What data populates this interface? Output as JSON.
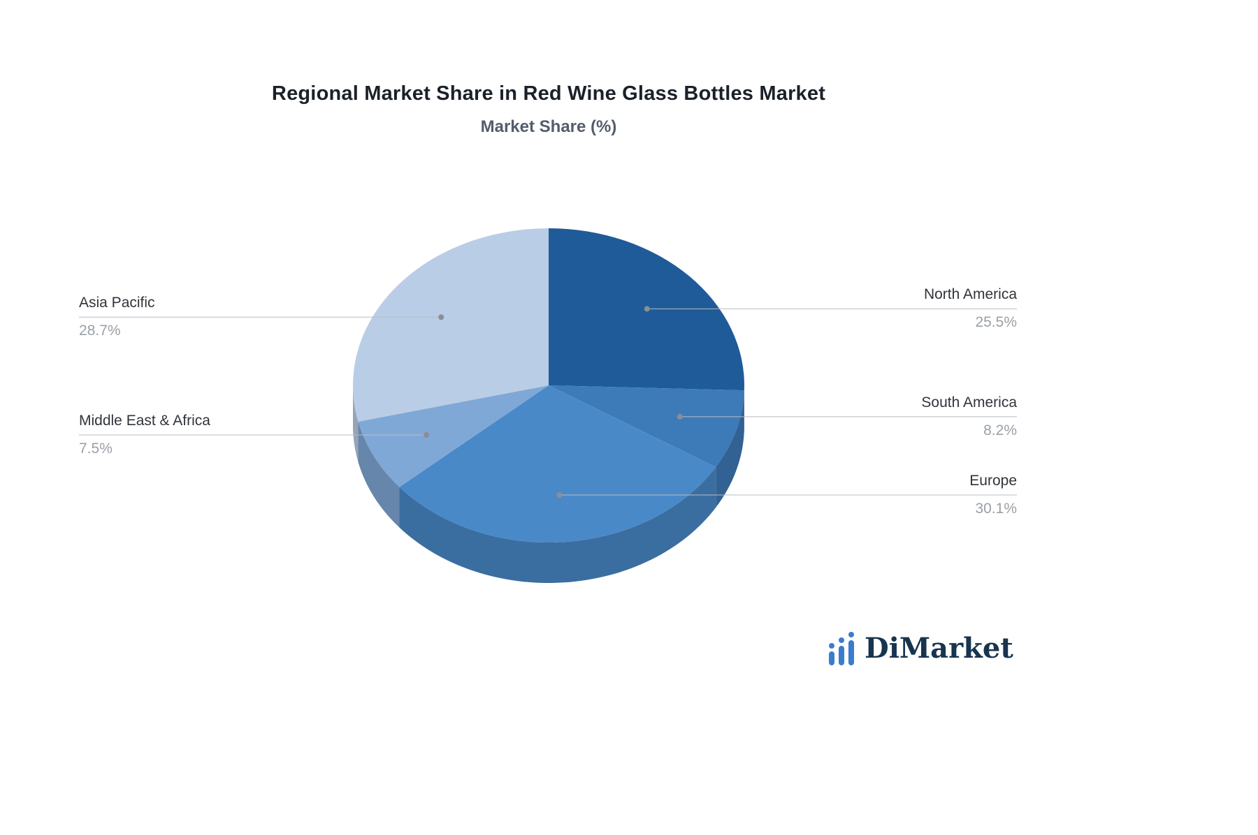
{
  "chart_data": {
    "type": "pie",
    "title": "Regional Market Share in Red Wine Glass Bottles Market",
    "subtitle": "Market Share (%)",
    "unit": "%",
    "start_angle_deg": -90,
    "direction": "clockwise",
    "labels_style": "leader-lines",
    "effect": "3d-depth",
    "categories": [
      "North America",
      "South America",
      "Europe",
      "Middle East & Africa",
      "Asia Pacific"
    ],
    "values": [
      25.5,
      8.2,
      30.1,
      7.5,
      28.7
    ],
    "slices": [
      {
        "label": "North America",
        "value": 25.5,
        "display": "25.5%",
        "color": "#1f5b99",
        "side": "right"
      },
      {
        "label": "South America",
        "value": 8.2,
        "display": "8.2%",
        "color": "#3d7ab8",
        "side": "right"
      },
      {
        "label": "Europe",
        "value": 30.1,
        "display": "30.1%",
        "color": "#4a89c8",
        "side": "right"
      },
      {
        "label": "Middle East & Africa",
        "value": 7.5,
        "display": "7.5%",
        "color": "#7fa8d6",
        "side": "left"
      },
      {
        "label": "Asia Pacific",
        "value": 28.7,
        "display": "28.7%",
        "color": "#bacde6",
        "side": "left"
      }
    ]
  },
  "branding": {
    "logo_text": "DiMarket",
    "logo_icon": "bar-chart-icon",
    "logo_color": "#3b7ccd"
  }
}
